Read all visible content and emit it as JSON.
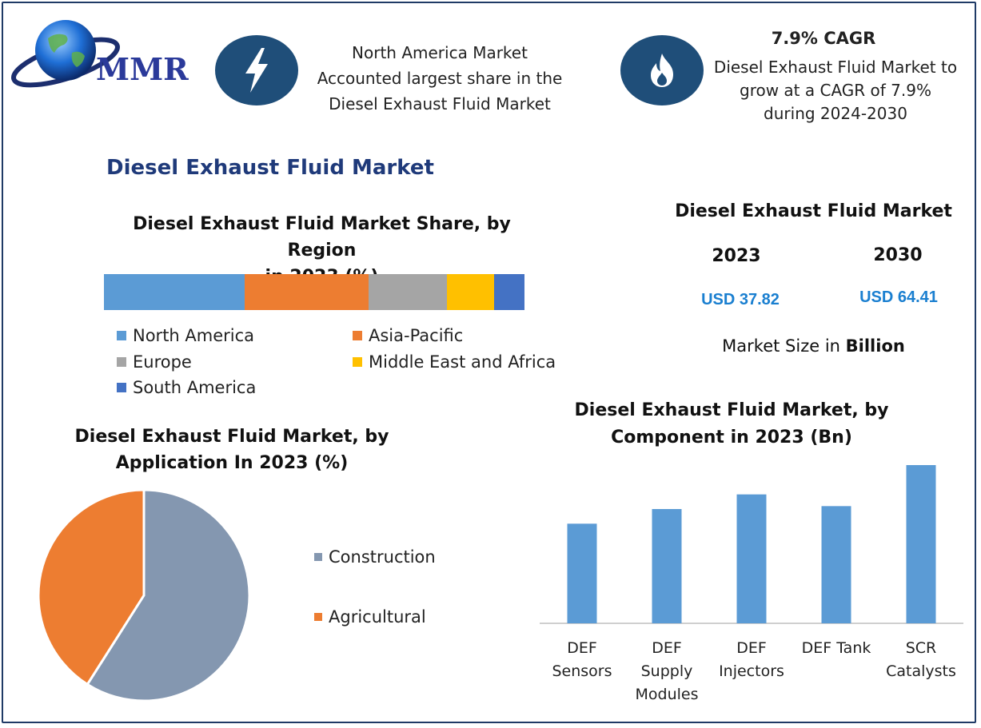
{
  "logo": {
    "text": "MMR",
    "icon": "globe-icon"
  },
  "header": {
    "left": {
      "icon": "lightning-icon",
      "lines": [
        "North America Market",
        "Accounted largest share in the",
        "Diesel Exhaust Fluid Market"
      ]
    },
    "right": {
      "icon": "flame-icon",
      "title": "7.9% CAGR",
      "lines": [
        "Diesel Exhaust Fluid Market to",
        "grow at a CAGR of 7.9%",
        "during 2024-2030"
      ]
    }
  },
  "main_title": "Diesel Exhaust Fluid Market",
  "market_size": {
    "title": "Diesel Exhaust Fluid Market",
    "year1": "2023",
    "year2": "2030",
    "value1": "USD 37.82",
    "value2": "USD 64.41",
    "note_prefix": "Market Size in ",
    "note_bold": "Billion"
  },
  "colors": {
    "north_america": "#5b9bd5",
    "asia_pacific": "#ed7d31",
    "europe": "#a5a5a5",
    "mea": "#ffc000",
    "south_america": "#4472c4",
    "construction": "#8497b0",
    "agricultural": "#ed7d31",
    "bar": "#5b9bd5",
    "accent_blue": "#1f4e79",
    "title_blue": "#1f3a7a"
  },
  "chart_data": [
    {
      "type": "bar",
      "orientation": "horizontal-stacked",
      "title_lines": [
        "Diesel Exhaust Fluid Market Share, by Region",
        "in 2023 (%)"
      ],
      "series": [
        {
          "name": "North America",
          "value": 33.5
        },
        {
          "name": "Asia-Pacific",
          "value": 29.5
        },
        {
          "name": "Europe",
          "value": 18.5
        },
        {
          "name": "Middle East and Africa",
          "value": 11.2
        },
        {
          "name": "South America",
          "value": 7.3
        }
      ],
      "legend": [
        "North America",
        "Asia-Pacific",
        "Europe",
        "Middle East and Africa",
        "South America"
      ]
    },
    {
      "type": "pie",
      "title_lines": [
        "Diesel Exhaust Fluid Market, by",
        "Application In 2023 (%)"
      ],
      "slices": [
        {
          "name": "Construction",
          "value": 59
        },
        {
          "name": "Agricultural",
          "value": 41
        }
      ]
    },
    {
      "type": "bar",
      "title_lines": [
        "Diesel Exhaust Fluid Market, by",
        "Component in 2023 (Bn)"
      ],
      "categories": [
        [
          "DEF",
          "Sensors"
        ],
        [
          "DEF",
          "Supply",
          "Modules"
        ],
        [
          "DEF",
          "Injectors"
        ],
        [
          "DEF Tank"
        ],
        [
          "SCR",
          "Catalysts"
        ]
      ],
      "values": [
        6.8,
        7.8,
        8.8,
        8.0,
        10.8
      ],
      "ylim": [
        0,
        12
      ]
    }
  ]
}
